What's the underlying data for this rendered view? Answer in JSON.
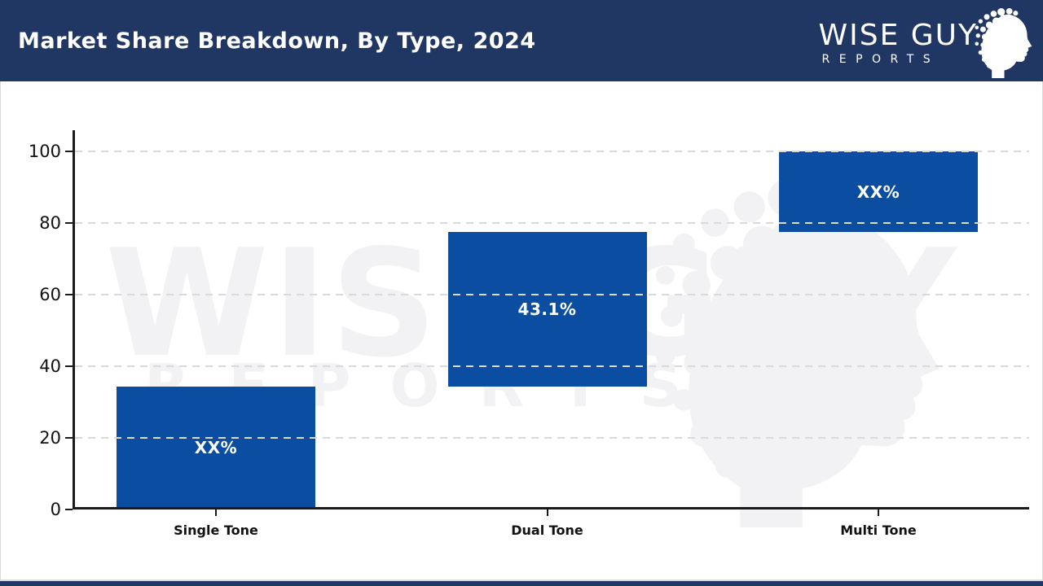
{
  "header": {
    "title": "Market Share Breakdown, By Type, 2024",
    "logo": {
      "line1": "WISE GUY",
      "line2": "REPORTS"
    }
  },
  "watermark": {
    "line1": "WISE GUY",
    "line2": "REPORTS"
  },
  "colors": {
    "header_bg": "#213763",
    "footer_bg": "#213763",
    "bar": "#0b4da1",
    "bar_label": "#ffffff",
    "axis": "#1a1a1a",
    "grid": "#d9d9d9",
    "watermark": "#f2f2f4"
  },
  "chart_data": {
    "type": "bar",
    "variant": "stacked-waterfall-segments",
    "title": "Market Share Breakdown, By Type, 2024",
    "categories": [
      "Single Tone",
      "Dual Tone",
      "Multi Tone"
    ],
    "bars": [
      {
        "category": "Single Tone",
        "start": 0,
        "end": 34.4,
        "label": "XX%"
      },
      {
        "category": "Dual Tone",
        "start": 34.4,
        "end": 77.5,
        "label": "43.1%"
      },
      {
        "category": "Multi Tone",
        "start": 77.5,
        "end": 100,
        "label": "XX%"
      }
    ],
    "xlabel": "",
    "ylabel": "",
    "ylim": [
      0,
      106
    ],
    "yticks": [
      0,
      20,
      40,
      60,
      80,
      100
    ],
    "grid": "horizontal-dashed",
    "legend": "none"
  }
}
